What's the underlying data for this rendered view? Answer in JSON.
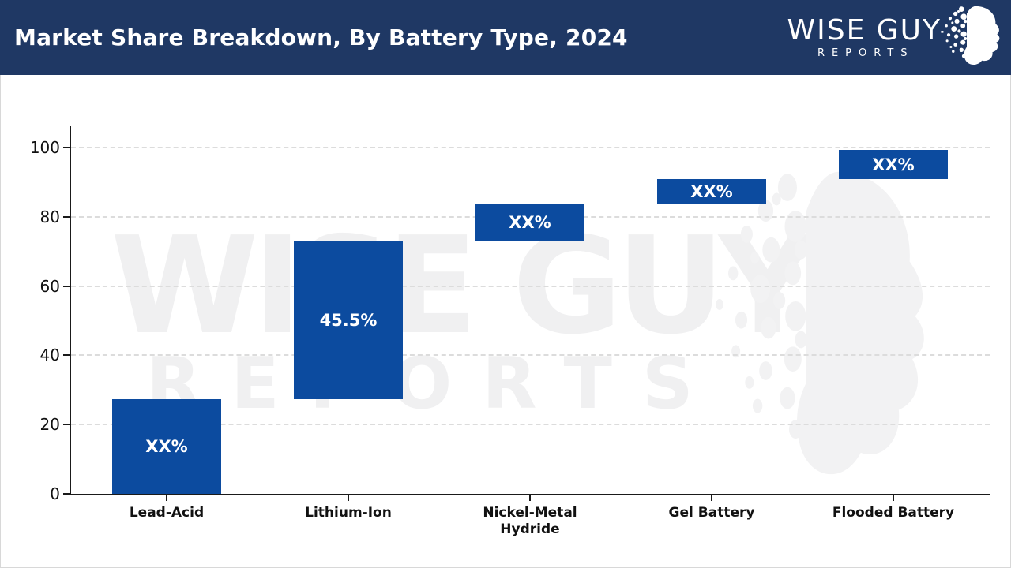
{
  "header": {
    "title": "Market Share Breakdown, By Battery Type, 2024",
    "logo_line1": "WISE GUY",
    "logo_line2": "REPORTS"
  },
  "watermark": {
    "line1": "WISE GUY",
    "line2": "REPORTS"
  },
  "chart_data": {
    "type": "bar",
    "subtype": "waterfall-floating-bars",
    "title": "Market Share Breakdown, By Battery Type, 2024",
    "categories": [
      "Lead-Acid",
      "Lithium-Ion",
      "Nickel-Metal\nHydride",
      "Gel Battery",
      "Flooded Battery"
    ],
    "segments": [
      [
        0,
        27.3
      ],
      [
        27.3,
        72.8
      ],
      [
        72.8,
        83.8
      ],
      [
        83.8,
        90.8
      ],
      [
        90.8,
        99.3
      ]
    ],
    "values": [
      27.3,
      45.5,
      11.0,
      7.0,
      8.5
    ],
    "bar_labels": [
      "XX%",
      "45.5%",
      "XX%",
      "XX%",
      "XX%"
    ],
    "yticks": [
      0,
      20,
      40,
      60,
      80,
      100
    ],
    "ylim": [
      0,
      105
    ],
    "xlabel": "",
    "ylabel": "",
    "legend": "none",
    "grid": "horizontal-dashed",
    "bar_color": "#0C4B9F",
    "bar_label_color": "#FFFFFF",
    "header_color": "#1F3864"
  }
}
